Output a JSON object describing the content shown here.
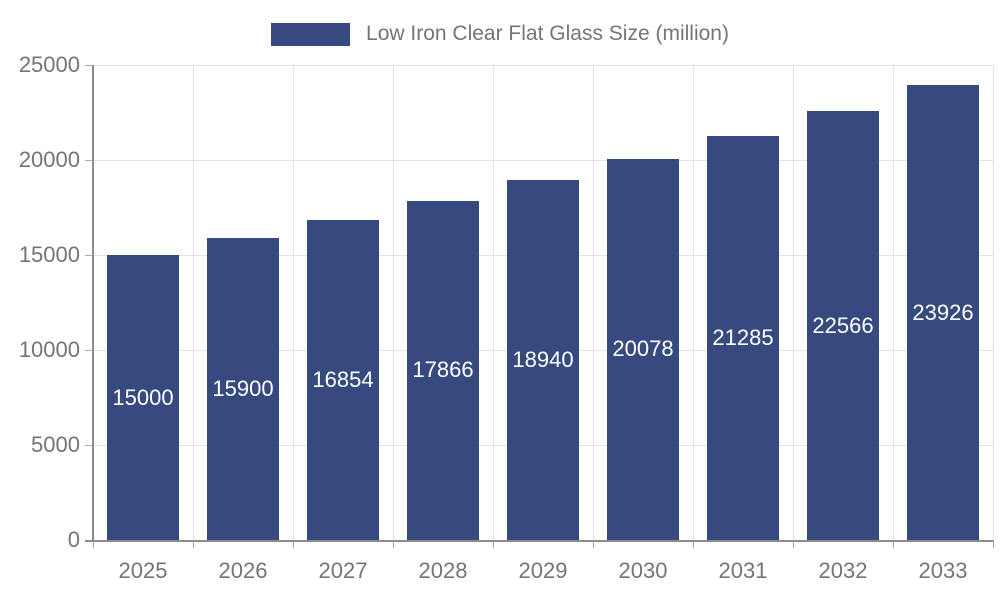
{
  "legend": {
    "label": "Low Iron Clear Flat Glass Size (million)"
  },
  "chart_data": {
    "type": "bar",
    "title": "Low Iron Clear Flat Glass Size (million)",
    "categories": [
      "2025",
      "2026",
      "2027",
      "2028",
      "2029",
      "2030",
      "2031",
      "2032",
      "2033"
    ],
    "series": [
      {
        "name": "Low Iron Clear Flat Glass Size (million)",
        "values": [
          15000,
          15900,
          16854,
          17866,
          18940,
          20078,
          21285,
          22566,
          23926
        ],
        "color": "#364a7f"
      }
    ],
    "xlabel": "",
    "ylabel": "",
    "ylim": [
      0,
      25000
    ],
    "y_ticks": [
      0,
      5000,
      10000,
      15000,
      20000,
      25000
    ],
    "grid": true,
    "legend_position": "top",
    "value_labels": "inside-center",
    "value_label_color": "#ffffff",
    "axis_label_color": "#757575",
    "grid_color": "#e2e2e8",
    "axis_line_color": "#8c8c8c",
    "tick_color": "#aaaaaa",
    "background_color": "#ffffff"
  }
}
